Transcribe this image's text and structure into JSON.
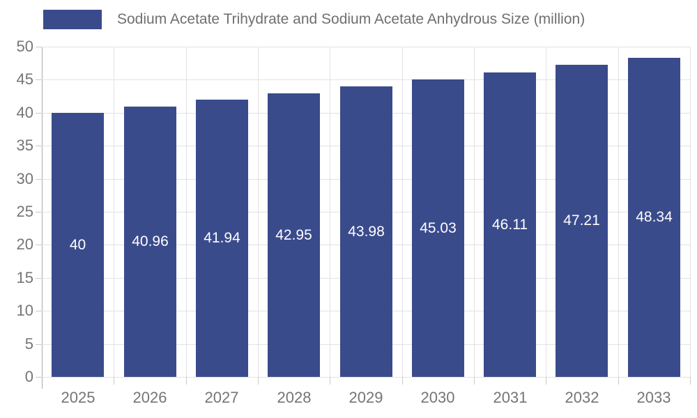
{
  "chart_data": {
    "type": "bar",
    "title": "Sodium Acetate Trihydrate and Sodium Acetate Anhydrous Size (million)",
    "categories": [
      "2025",
      "2026",
      "2027",
      "2028",
      "2029",
      "2030",
      "2031",
      "2032",
      "2033"
    ],
    "values": [
      40,
      40.96,
      41.94,
      42.95,
      43.98,
      45.03,
      46.11,
      47.21,
      48.34
    ],
    "value_labels": [
      "40",
      "40.96",
      "41.94",
      "42.95",
      "43.98",
      "45.03",
      "46.11",
      "47.21",
      "48.34"
    ],
    "xlabel": "",
    "ylabel": "",
    "ylim": [
      0,
      50
    ],
    "ytick_step": 5,
    "grid": true,
    "legend_position": "top-left",
    "colors": {
      "bar": "#3a4b8c",
      "bar_value_label": "#ffffff",
      "grid": "#e2e2e2",
      "axis_line": "#ababab",
      "tick_mark": "#c9c9c9",
      "axis_text": "#757575",
      "legend_text": "#6f6f6f",
      "background": "#ffffff"
    }
  }
}
